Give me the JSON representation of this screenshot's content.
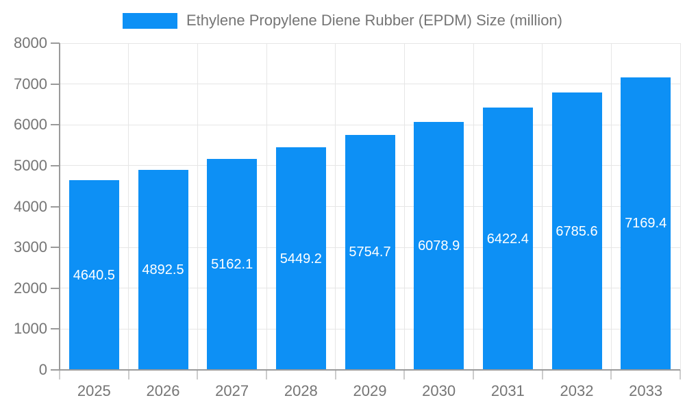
{
  "legend": {
    "label": "Ethylene Propylene Diene Rubber (EPDM) Size (million)"
  },
  "chart_data": {
    "type": "bar",
    "title": "Ethylene Propylene Diene Rubber (EPDM) Size (million)",
    "categories": [
      "2025",
      "2026",
      "2027",
      "2028",
      "2029",
      "2030",
      "2031",
      "2032",
      "2033"
    ],
    "values": [
      4640.5,
      4892.5,
      5162.1,
      5449.2,
      5754.7,
      6078.9,
      6422.4,
      6785.6,
      7169.4
    ],
    "value_labels": [
      "4640.5",
      "4892.5",
      "5162.1",
      "5449.2",
      "5754.7",
      "6078.9",
      "6422.4",
      "6785.6",
      "7169.4"
    ],
    "xlabel": "",
    "ylabel": "",
    "ylim": [
      0,
      8000
    ],
    "yticks": [
      0,
      1000,
      2000,
      3000,
      4000,
      5000,
      6000,
      7000,
      8000
    ],
    "grid": true,
    "legend_position": "top",
    "colors": {
      "bar": "#0d90f5",
      "grid": "#e6e6e6",
      "axis": "#9a9a9a",
      "tick_label": "#757575",
      "value_label": "#ffffff",
      "background": "#ffffff"
    }
  }
}
